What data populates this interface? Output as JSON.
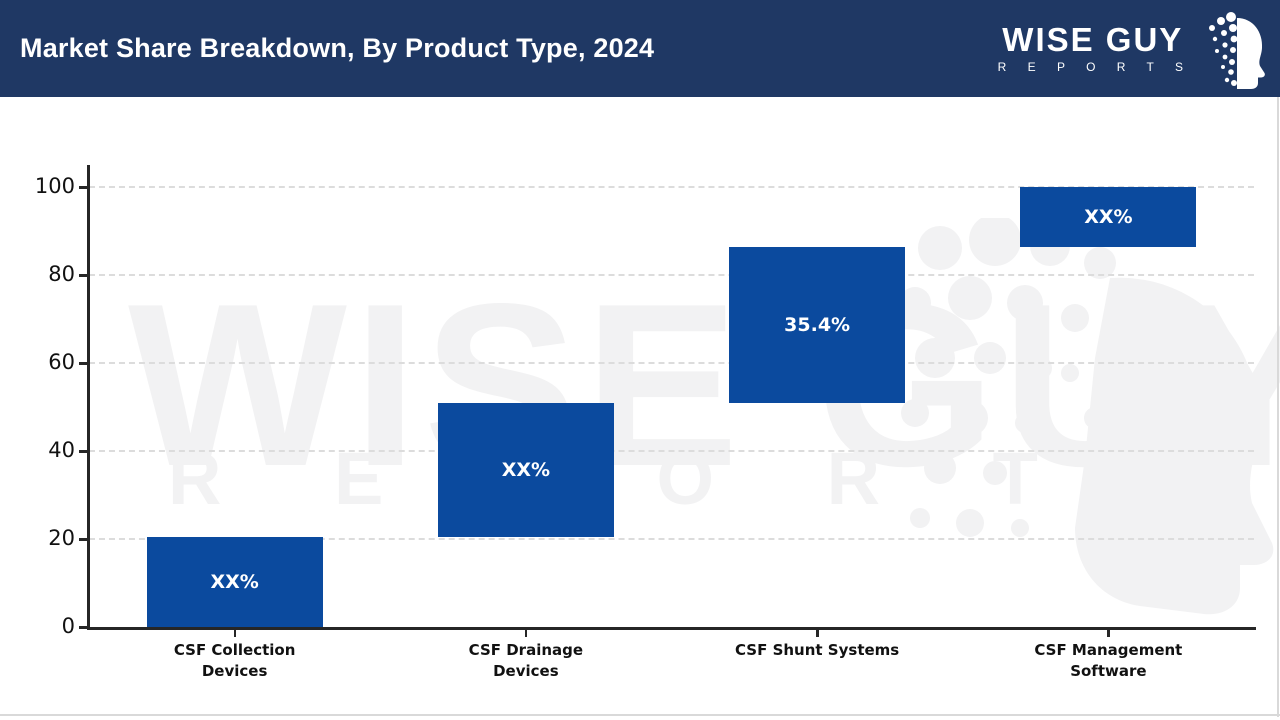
{
  "header": {
    "title": "Market Share Breakdown, By Product Type, 2024",
    "logo": {
      "line1": "WISE GUY",
      "line2": "R E P O R T S"
    }
  },
  "watermark": {
    "line1": "WISE GUY",
    "line2": "R E P O R T S"
  },
  "colors": {
    "header_bg": "#1f3864",
    "bar": "#0b4a9e",
    "bar_label": "#ffffff",
    "axis": "#262626",
    "gridline": "#dcdcdc",
    "watermark": "#f2f2f3"
  },
  "chart_data": {
    "type": "bar",
    "subtype": "floating-waterfall",
    "title": "Market Share Breakdown, By Product Type, 2024",
    "categories": [
      "CSF Collection\nDevices",
      "CSF Drainage\nDevices",
      "CSF Shunt Systems",
      "CSF Management\nSoftware"
    ],
    "segments": [
      {
        "category": "CSF Collection Devices",
        "start": 0,
        "end": 20.5,
        "label": "XX%"
      },
      {
        "category": "CSF Drainage Devices",
        "start": 20.5,
        "end": 51.0,
        "label": "XX%"
      },
      {
        "category": "CSF Shunt Systems",
        "start": 51.0,
        "end": 86.4,
        "label": "35.4%"
      },
      {
        "category": "CSF Management Software",
        "start": 86.4,
        "end": 100,
        "label": "XX%"
      }
    ],
    "xlabel": "",
    "ylabel": "",
    "ylim": [
      0,
      100
    ],
    "yticks": [
      0,
      20,
      40,
      60,
      80,
      100
    ],
    "grid": "horizontal dashed",
    "legend": "none"
  }
}
